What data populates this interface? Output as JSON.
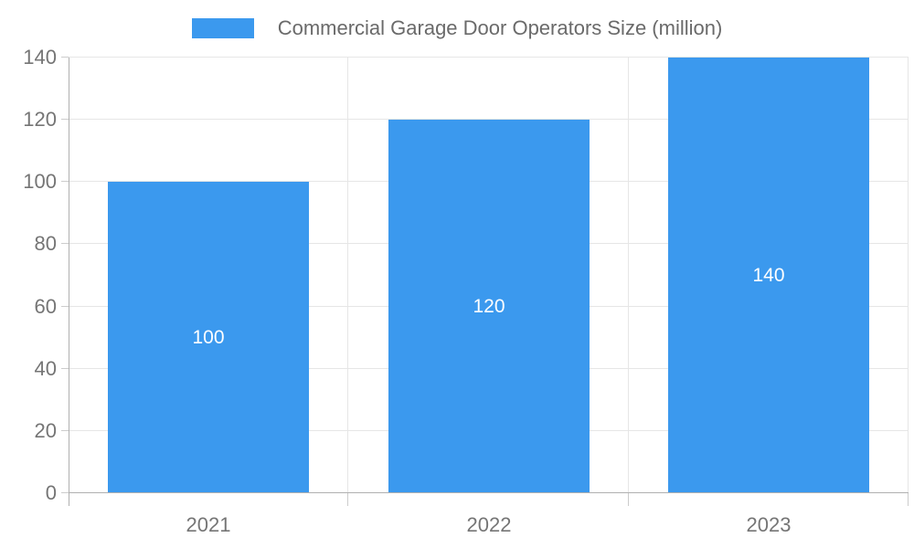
{
  "chart_data": {
    "type": "bar",
    "title": "Commercial Garage Door Operators Size (million)",
    "legend_position": "top-center",
    "categories": [
      "2021",
      "2022",
      "2023"
    ],
    "series": [
      {
        "name": "Commercial Garage Door Operators Size (million)",
        "values": [
          100,
          120,
          140
        ]
      }
    ],
    "bar_labels": [
      "100",
      "120",
      "140"
    ],
    "xlabel": "",
    "ylabel": "",
    "ylim": [
      0,
      140
    ],
    "yticks": [
      0,
      20,
      40,
      60,
      80,
      100,
      120,
      140
    ],
    "grid": true,
    "colors": {
      "bar": "#3B99EE",
      "bar_label_text": "#FFFFFF",
      "axis_text": "#757575",
      "title_text": "#6A6A6A",
      "gridline": "#E6E6E6",
      "axis_line": "#B0B0B0",
      "tick": "#CCCCCC",
      "background": "#FFFFFF"
    }
  }
}
